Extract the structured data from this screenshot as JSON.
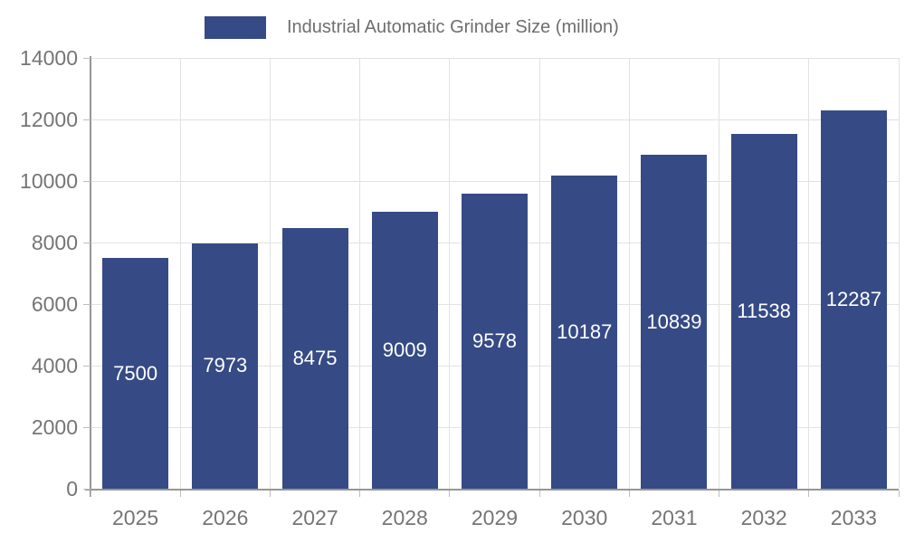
{
  "legend": {
    "label": "Industrial Automatic Grinder Size (million)"
  },
  "chart_data": {
    "type": "bar",
    "title": "Industrial Automatic Grinder Size (million)",
    "categories": [
      "2025",
      "2026",
      "2027",
      "2028",
      "2029",
      "2030",
      "2031",
      "2032",
      "2033"
    ],
    "values": [
      7500,
      7973,
      8475,
      9009,
      9578,
      10187,
      10839,
      11538,
      12287
    ],
    "xlabel": "",
    "ylabel": "",
    "ylim": [
      0,
      14000
    ],
    "yticks": [
      0,
      2000,
      4000,
      6000,
      8000,
      10000,
      12000,
      14000
    ],
    "grid": true,
    "legend_position": "top",
    "bar_color": "#364a85",
    "value_label_color": "#ffffff",
    "axis_text_color": "#757575",
    "grid_color": "#e2e2e2",
    "axis_line_color": "#969696"
  }
}
